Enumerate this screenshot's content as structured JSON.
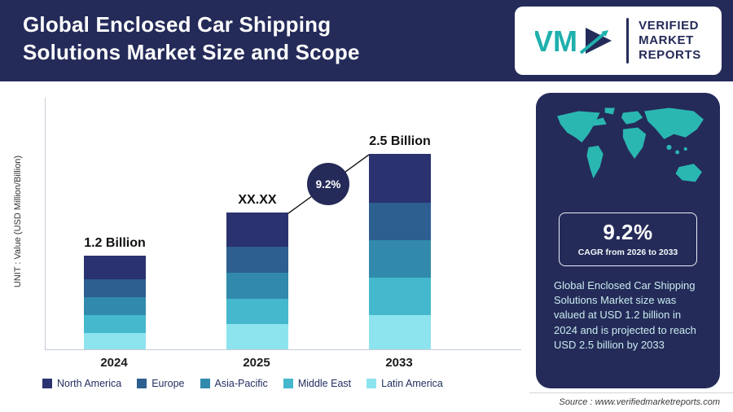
{
  "colors": {
    "navy": "#242b58",
    "teal": "#25b4af"
  },
  "header": {
    "title": "Global Enclosed Car Shipping Solutions Market Size and Scope",
    "brand": {
      "logo": "VM",
      "name_lines": [
        "VERIFIED",
        "MARKET",
        "REPORTS"
      ]
    }
  },
  "chart_data": {
    "type": "bar",
    "stacked": true,
    "title": "Global Enclosed Car Shipping Solutions Market Size and Scope",
    "ylabel": "UNIT : Value (USD Million/Billion)",
    "unit": "USD Billion",
    "categories": [
      "2024",
      "2025",
      "2033"
    ],
    "bar_total_labels": [
      "1.2 Billion",
      "XX.XX",
      "2.5 Billion"
    ],
    "bar_totals": [
      1.2,
      1.75,
      2.5
    ],
    "growth_label": "9.2%",
    "ylim": [
      0,
      2.5
    ],
    "grid": false,
    "legend_position": "bottom",
    "series": [
      {
        "name": "North America",
        "color": "#2a3270",
        "values": [
          0.3,
          0.44,
          0.62
        ]
      },
      {
        "name": "Europe",
        "color": "#2d6090",
        "values": [
          0.23,
          0.33,
          0.48
        ]
      },
      {
        "name": "Asia-Pacific",
        "color": "#3189ab",
        "values": [
          0.23,
          0.33,
          0.48
        ]
      },
      {
        "name": "Middle East",
        "color": "#46b8cd",
        "values": [
          0.23,
          0.33,
          0.48
        ]
      },
      {
        "name": "Latin America",
        "color": "#8ee4ee",
        "values": [
          0.21,
          0.32,
          0.44
        ]
      }
    ]
  },
  "sidebar": {
    "cagr_value": "9.2%",
    "cagr_label": "CAGR from 2026 to 2033",
    "description": "Global Enclosed Car Shipping Solutions Market size was valued at USD 1.2 billion in 2024 and is projected to reach USD 2.5 billion by 2033"
  },
  "footer": {
    "source": "Source : www.verifiedmarketreports.com"
  }
}
